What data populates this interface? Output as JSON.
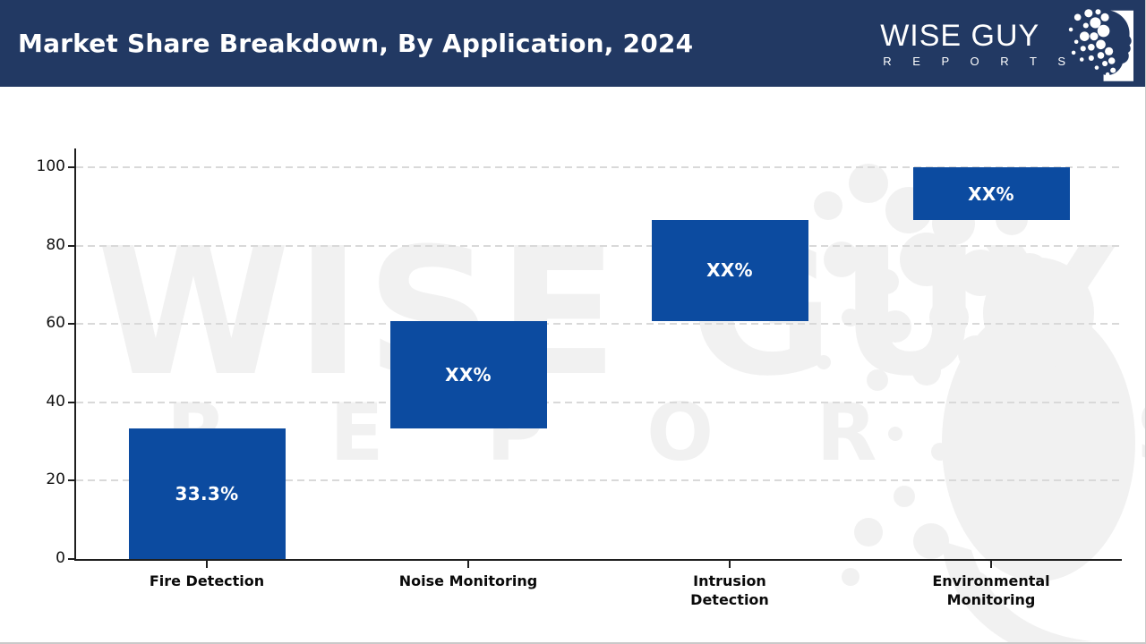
{
  "header": {
    "title": "Market Share Breakdown, By Application, 2024",
    "bg_color": "#223963",
    "logo": {
      "name": "Wise Guy Reports",
      "line1": "WISE GUY",
      "line2": "R E P O R T S"
    }
  },
  "watermark": {
    "line1": "WISE GUY",
    "line2": "R E P O R T S"
  },
  "chart_data": {
    "type": "bar",
    "subtype": "waterfall",
    "title": "Market Share Breakdown, By Application, 2024",
    "categories": [
      "Fire Detection",
      "Noise Monitoring",
      "Intrusion\nDetection",
      "Environmental\nMonitoring"
    ],
    "segments": [
      [
        0,
        33.3
      ],
      [
        33.3,
        60.8
      ],
      [
        60.8,
        86.5
      ],
      [
        86.5,
        100
      ]
    ],
    "values": [
      33.3,
      27.5,
      25.7,
      13.5
    ],
    "bar_labels": [
      "33.3%",
      "XX%",
      "XX%",
      "XX%"
    ],
    "yticks": [
      0,
      20,
      40,
      60,
      80,
      100
    ],
    "ylim": [
      0,
      100
    ],
    "xlabel": "",
    "ylabel": "",
    "grid": "horizontal-dashed",
    "legend": "none",
    "bar_color": "#0c4ba0",
    "bar_label_color": "#ffffff",
    "axis_color": "#1f1f1f",
    "grid_color": "#d9d9d9",
    "watermark_color": "#f1f1f1"
  }
}
